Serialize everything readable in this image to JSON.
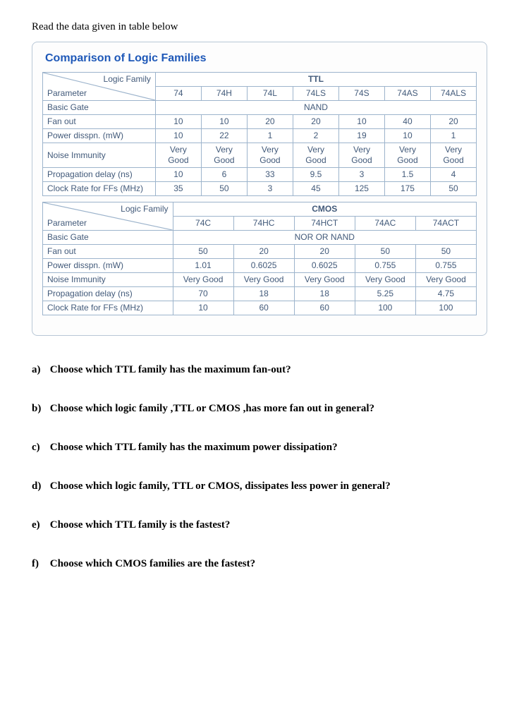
{
  "intro": "Read the data given in table below",
  "panel_title": "Comparison of Logic Families",
  "ttl": {
    "diag_top": "Logic Family",
    "diag_bottom": "Parameter",
    "family_label": "TTL",
    "cols": [
      "74",
      "74H",
      "74L",
      "74LS",
      "74S",
      "74AS",
      "74ALS"
    ],
    "basic_gate_label": "Basic Gate",
    "basic_gate_value": "NAND",
    "rows": [
      {
        "label": "Fan out",
        "v": [
          "10",
          "10",
          "20",
          "20",
          "10",
          "40",
          "20"
        ]
      },
      {
        "label": "Power disspn. (mW)",
        "v": [
          "10",
          "22",
          "1",
          "2",
          "19",
          "10",
          "1"
        ]
      },
      {
        "label": "Noise Immunity",
        "v": [
          "Very Good",
          "Very Good",
          "Very Good",
          "Very Good",
          "Very Good",
          "Very Good",
          "Very Good"
        ]
      },
      {
        "label": "Propagation delay (ns)",
        "v": [
          "10",
          "6",
          "33",
          "9.5",
          "3",
          "1.5",
          "4"
        ]
      },
      {
        "label": "Clock Rate for FFs (MHz)",
        "v": [
          "35",
          "50",
          "3",
          "45",
          "125",
          "175",
          "50"
        ]
      }
    ]
  },
  "cmos": {
    "diag_top": "Logic Family",
    "diag_bottom": "Parameter",
    "family_label": "CMOS",
    "cols": [
      "74C",
      "74HC",
      "74HCT",
      "74AC",
      "74ACT"
    ],
    "basic_gate_label": "Basic Gate",
    "basic_gate_value": "NOR OR NAND",
    "rows": [
      {
        "label": "Fan out",
        "v": [
          "50",
          "20",
          "20",
          "50",
          "50"
        ]
      },
      {
        "label": "Power disspn. (mW)",
        "v": [
          "1.01",
          "0.6025",
          "0.6025",
          "0.755",
          "0.755"
        ]
      },
      {
        "label": "Noise Immunity",
        "v": [
          "Very Good",
          "Very Good",
          "Very Good",
          "Very Good",
          "Very Good"
        ]
      },
      {
        "label": "Propagation delay (ns)",
        "v": [
          "70",
          "18",
          "18",
          "5.25",
          "4.75"
        ]
      },
      {
        "label": "Clock Rate for FFs (MHz)",
        "v": [
          "10",
          "60",
          "60",
          "100",
          "100"
        ]
      }
    ]
  },
  "questions": [
    {
      "lbl": "a)",
      "text": "Choose which TTL family has the maximum fan-out?"
    },
    {
      "lbl": "b)",
      "text": "Choose which logic family ,TTL or CMOS ,has more fan out in general?"
    },
    {
      "lbl": "c)",
      "text": "Choose which TTL family has the maximum power dissipation?"
    },
    {
      "lbl": "d)",
      "text": "Choose which logic family, TTL or CMOS, dissipates less power in general?"
    },
    {
      "lbl": "e)",
      "text": "Choose which TTL family is the fastest?"
    },
    {
      "lbl": "f)",
      "text": "Choose which CMOS families are the fastest?"
    }
  ],
  "colors": {
    "border": "#9db4cc",
    "text": "#425a7a",
    "title": "#1e58b8"
  }
}
